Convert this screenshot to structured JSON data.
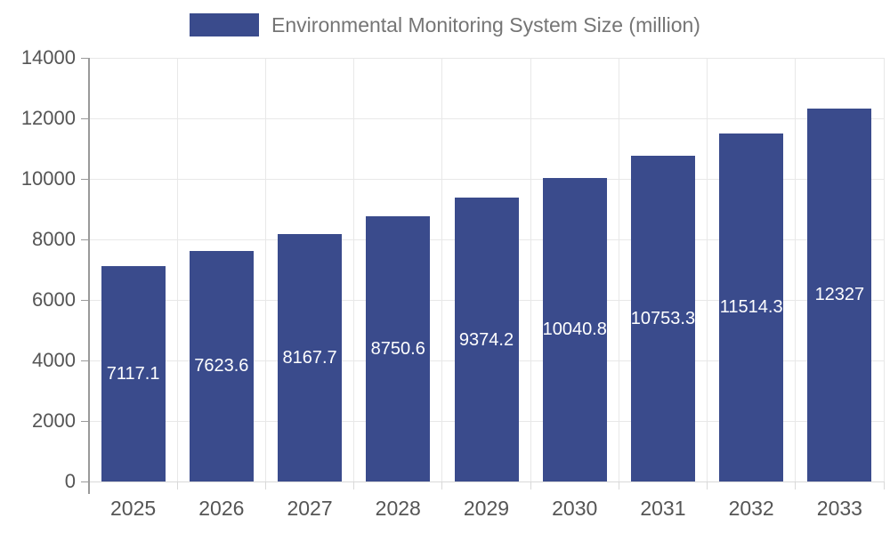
{
  "legend": {
    "label": "Environmental Monitoring System Size (million)"
  },
  "chart_data": {
    "type": "bar",
    "title": "Environmental Monitoring System Size (million)",
    "categories": [
      "2025",
      "2026",
      "2027",
      "2028",
      "2029",
      "2030",
      "2031",
      "2032",
      "2033"
    ],
    "values": [
      7117.1,
      7623.6,
      8167.7,
      8750.6,
      9374.2,
      10040.8,
      10753.3,
      11514.3,
      12327
    ],
    "bar_labels": [
      "7117.1",
      "7623.6",
      "8167.7",
      "8750.6",
      "9374.2",
      "10040.8",
      "10753.3",
      "11514.3",
      "12327"
    ],
    "xlabel": "",
    "ylabel": "",
    "ylim": [
      0,
      14000
    ],
    "yticks": [
      0,
      2000,
      4000,
      6000,
      8000,
      10000,
      12000,
      14000
    ],
    "grid": true,
    "legend_position": "top",
    "colors": {
      "bar": "#3A4B8C",
      "bar_label_text": "#ffffff",
      "axis_text": "#555555",
      "legend_text": "#757575",
      "gridline": "#e8e8e8",
      "y_axis_line": "#9a9a9a",
      "x_axis_line": "#d9d9d9"
    }
  }
}
